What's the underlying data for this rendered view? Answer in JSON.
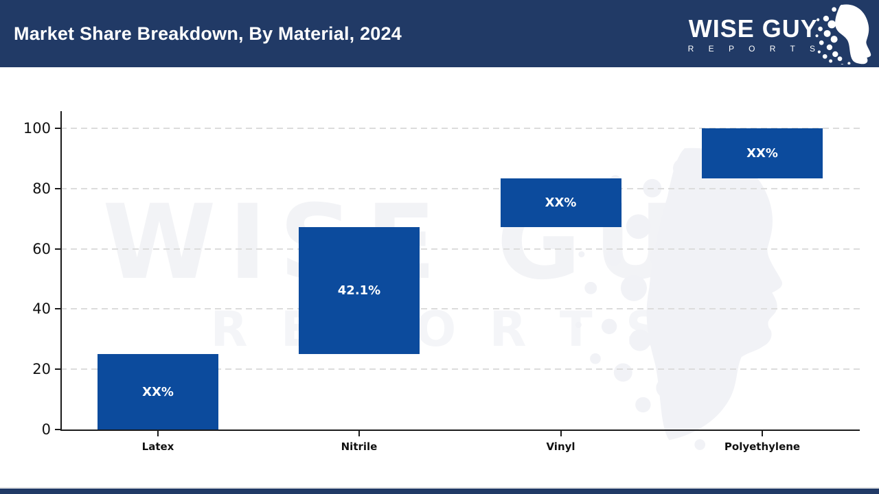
{
  "header": {
    "title": "Market Share Breakdown, By Material, 2024",
    "background_color": "#213a66",
    "logo": {
      "line1": "WISE GUY",
      "line2": "R E P O R T S"
    }
  },
  "watermark": {
    "line1": "WISE GUY",
    "line2": "R E P O R T S"
  },
  "footer": {
    "bar_color": "#213a66"
  },
  "chart_data": {
    "type": "bar",
    "subtype": "floating-cumulative-waterfall",
    "title": "Market Share Breakdown, By Material, 2024",
    "categories": [
      "Latex",
      "Nitrile",
      "Vinyl",
      "Polyethylene"
    ],
    "series": [
      {
        "name": "Market share (%)",
        "segment_start": [
          0,
          25,
          67.1,
          83.4
        ],
        "segment_end": [
          25,
          67.1,
          83.4,
          100
        ],
        "bar_labels": [
          "XX%",
          "42.1%",
          "XX%",
          "XX%"
        ]
      }
    ],
    "xlabel": "",
    "ylabel": "",
    "yticks": [
      0,
      20,
      40,
      60,
      80,
      100
    ],
    "ylim": [
      0,
      106
    ],
    "grid": "horizontal-dashed",
    "legend": "none",
    "bar_color": "#0c4b9d",
    "bar_label_color": "#ffffff"
  }
}
